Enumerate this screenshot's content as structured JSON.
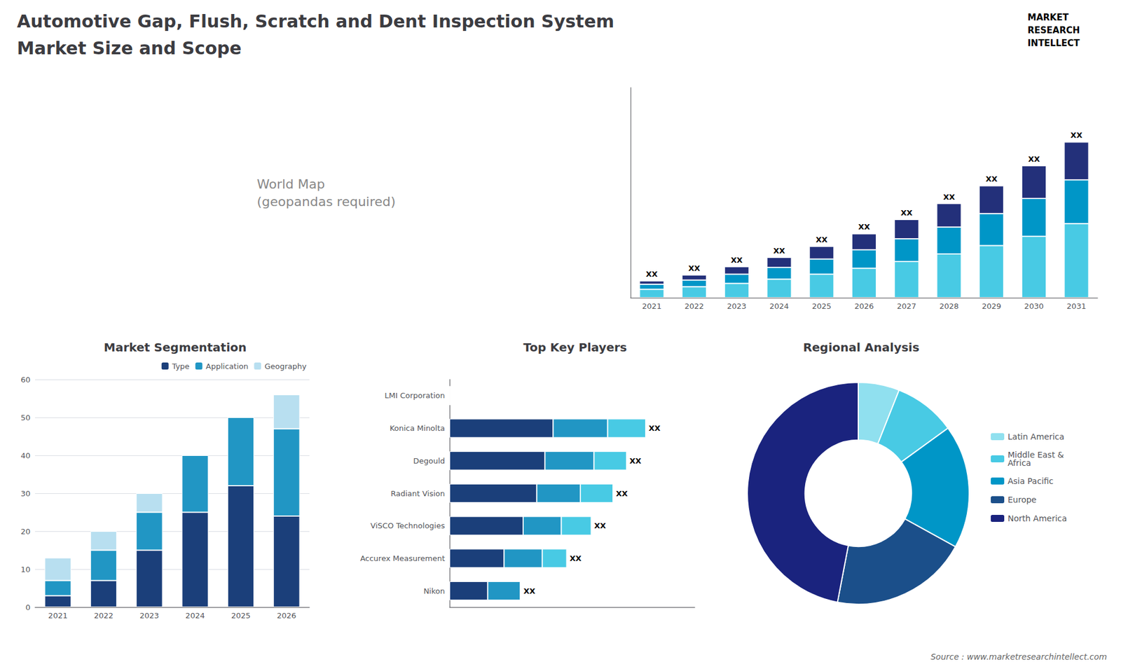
{
  "title": "Automotive Gap, Flush, Scratch and Dent Inspection System",
  "subtitle": "Market Size and Scope",
  "annotations": [
    "MARKET",
    "RESEARCH",
    "INTELLECT",
    "World Map\n(geopandas required)",
    "Source : www.marketresearchintellect.com"
  ],
  "chart_data": [
    {
      "type": "bar",
      "stacked": true,
      "categories": [
        "2021",
        "2022",
        "2023",
        "2024",
        "2025",
        "2026",
        "2027",
        "2028",
        "2029",
        "2030",
        "2031"
      ],
      "series": [
        {
          "color": "#48cae4",
          "values": [
            1.0,
            1.3,
            1.7,
            2.2,
            2.8,
            3.5,
            4.3,
            5.2,
            6.2,
            7.3,
            8.8
          ]
        },
        {
          "color": "#0096c7",
          "values": [
            0.6,
            0.8,
            1.1,
            1.4,
            1.8,
            2.2,
            2.7,
            3.2,
            3.8,
            4.5,
            5.2
          ]
        },
        {
          "color": "#23307a",
          "values": [
            0.4,
            0.6,
            0.9,
            1.2,
            1.5,
            1.9,
            2.3,
            2.8,
            3.3,
            3.9,
            4.5
          ],
          "value_labels": [
            "XX",
            "XX",
            "XX",
            "XX",
            "XX",
            "XX",
            "XX",
            "XX",
            "XX",
            "XX",
            "XX"
          ]
        }
      ],
      "ylim": [
        0,
        24.975
      ],
      "tick_labels": "x",
      "grid": false
    },
    {
      "type": "bar",
      "title": "Market Segmentation",
      "stacked": true,
      "categories": [
        "2021",
        "2022",
        "2023",
        "2024",
        "2025",
        "2026"
      ],
      "series": [
        {
          "name": "Type",
          "color": "#1b3f7a",
          "values": [
            3,
            7,
            15,
            25,
            32,
            24
          ]
        },
        {
          "name": "Application",
          "color": "#2196c4",
          "values": [
            4,
            8,
            10,
            15,
            18,
            23
          ]
        },
        {
          "name": "Geography",
          "color": "#b8dff0",
          "values": [
            6,
            5,
            5,
            0,
            0,
            9
          ]
        }
      ],
      "ylim": [
        0,
        60
      ],
      "yticks": [
        0,
        10,
        20,
        30,
        40,
        50,
        60
      ],
      "grid": true,
      "legend": "upper right"
    },
    {
      "type": "bar",
      "title": "Top Key Players",
      "orientation": "horizontal",
      "stacked": true,
      "categories": [
        "LMI Corporation",
        "Konica Minolta",
        "Degould",
        "Radiant Vision",
        "ViSCO Technologies",
        "Accurex Measurement",
        "Nikon"
      ],
      "series": [
        {
          "color": "#1b3f7a",
          "values": [
            0,
            38,
            35,
            32,
            27,
            20,
            14
          ]
        },
        {
          "color": "#2196c4",
          "values": [
            0,
            20,
            18,
            16,
            14,
            14,
            12
          ]
        },
        {
          "color": "#48cae4",
          "values": [
            0,
            14,
            12,
            12,
            11,
            9,
            0
          ],
          "value_labels": [
            null,
            "XX",
            "XX",
            "XX",
            "XX",
            "XX",
            "XX"
          ]
        }
      ],
      "xlim": [
        0,
        90
      ],
      "tick_labels": "y",
      "grid": false
    },
    {
      "type": "pie",
      "title": "Regional Analysis",
      "categories": [
        "Latin America",
        "Middle East &\nAfrica",
        "Asia Pacific",
        "Europe",
        "North America"
      ],
      "values": [
        6,
        9,
        18,
        20,
        47
      ],
      "colors": [
        "#90e0ef",
        "#48cae4",
        "#0096c7",
        "#1b4f8a",
        "#1a237e"
      ],
      "legend": "right"
    }
  ]
}
